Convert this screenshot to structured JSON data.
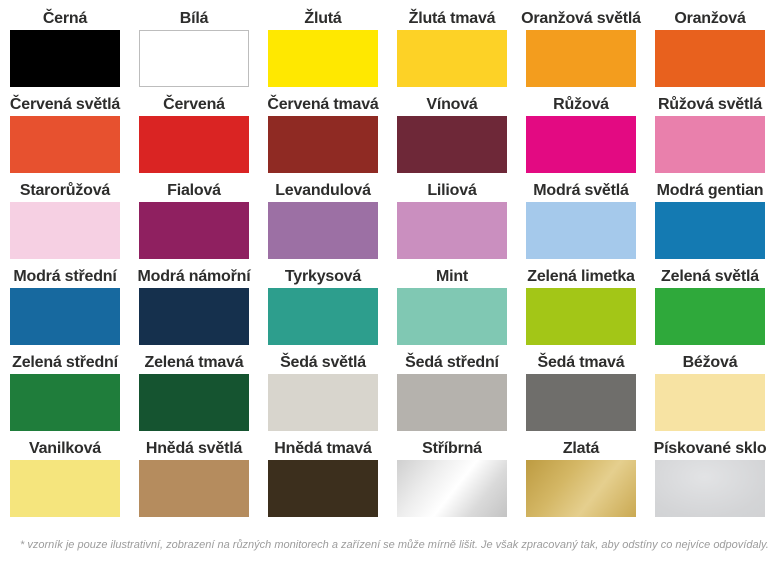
{
  "chart_data": {
    "type": "table",
    "title": "",
    "grid": {
      "columns": 6,
      "rows": 6
    },
    "legend": "color swatch sample chart (vzorník barev)",
    "swatches": [
      {
        "label": "Černá",
        "fill": "#000000"
      },
      {
        "label": "Bílá",
        "fill": "#ffffff",
        "border": "1px solid #bdbdbd"
      },
      {
        "label": "Žlutá",
        "fill": "#ffe800"
      },
      {
        "label": "Žlutá tmavá",
        "fill": "#fdd226"
      },
      {
        "label": "Oranžová světlá",
        "fill": "#f39d1e"
      },
      {
        "label": "Oranžová",
        "fill": "#e8611e"
      },
      {
        "label": "Červená světlá",
        "fill": "#e7512f"
      },
      {
        "label": "Červená",
        "fill": "#da2423"
      },
      {
        "label": "Červená tmavá",
        "fill": "#8f2a23"
      },
      {
        "label": "Vínová",
        "fill": "#6e2838"
      },
      {
        "label": "Růžová",
        "fill": "#e30a82"
      },
      {
        "label": "Růžová světlá",
        "fill": "#e980ac"
      },
      {
        "label": "Starorůžová",
        "fill": "#f6d0e3"
      },
      {
        "label": "Fialová",
        "fill": "#8f2060"
      },
      {
        "label": "Levandulová",
        "fill": "#9c70a4"
      },
      {
        "label": "Liliová",
        "fill": "#ca8fbf"
      },
      {
        "label": "Modrá světlá",
        "fill": "#a5c9eb"
      },
      {
        "label": "Modrá gentian",
        "fill": "#147ab2"
      },
      {
        "label": "Modrá střední",
        "fill": "#17699f"
      },
      {
        "label": "Modrá námořní",
        "fill": "#15304d"
      },
      {
        "label": "Tyrkysová",
        "fill": "#2d9e8d"
      },
      {
        "label": "Mint",
        "fill": "#80c8b3"
      },
      {
        "label": "Zelená limetka",
        "fill": "#a3c617"
      },
      {
        "label": "Zelená světlá",
        "fill": "#2fa93b"
      },
      {
        "label": "Zelená střední",
        "fill": "#1f7d3b"
      },
      {
        "label": "Zelená tmavá",
        "fill": "#155430"
      },
      {
        "label": "Šedá světlá",
        "fill": "#d8d5cd"
      },
      {
        "label": "Šedá střední",
        "fill": "#b5b2ad"
      },
      {
        "label": "Šedá tmavá",
        "fill": "#6f6e6b"
      },
      {
        "label": "Béžová",
        "fill": "#f7e3a3"
      },
      {
        "label": "Vanilková",
        "fill": "#f5e57d"
      },
      {
        "label": "Hnědá světlá",
        "fill": "#b58c5e"
      },
      {
        "label": "Hnědá tmavá",
        "fill": "#3c2f1d"
      },
      {
        "label": "Stříbrná",
        "fill": "linear-gradient(128deg, #cfcfcf 0%, #ededed 30%, #ffffff 52%, #dadada 75%, #c3c3c3 100%)"
      },
      {
        "label": "Zlatá",
        "fill": "linear-gradient(128deg, #bd9b41 0%, #d4b765 35%, #e5cf8e 62%, #caa952 100%)"
      },
      {
        "label": "Pískované sklo",
        "fill": "radial-gradient(90% 110% at 45% 30%, #e2e3e5 0%, #d3d4d6 65%, #d0d1d3 100%)"
      }
    ]
  },
  "footer": {
    "note": "* vzorník je pouze ilustrativní, zobrazení na různých monitorech a zařízení se může mírně lišit. Je však zpracovaný tak, aby odstíny co nejvíce odpovídaly."
  },
  "colors": {
    "background": "#ffffff",
    "label_text": "#2d2d2c",
    "footnote_text": "#9c9c9c",
    "white_swatch_border": "#bdbdbd"
  }
}
